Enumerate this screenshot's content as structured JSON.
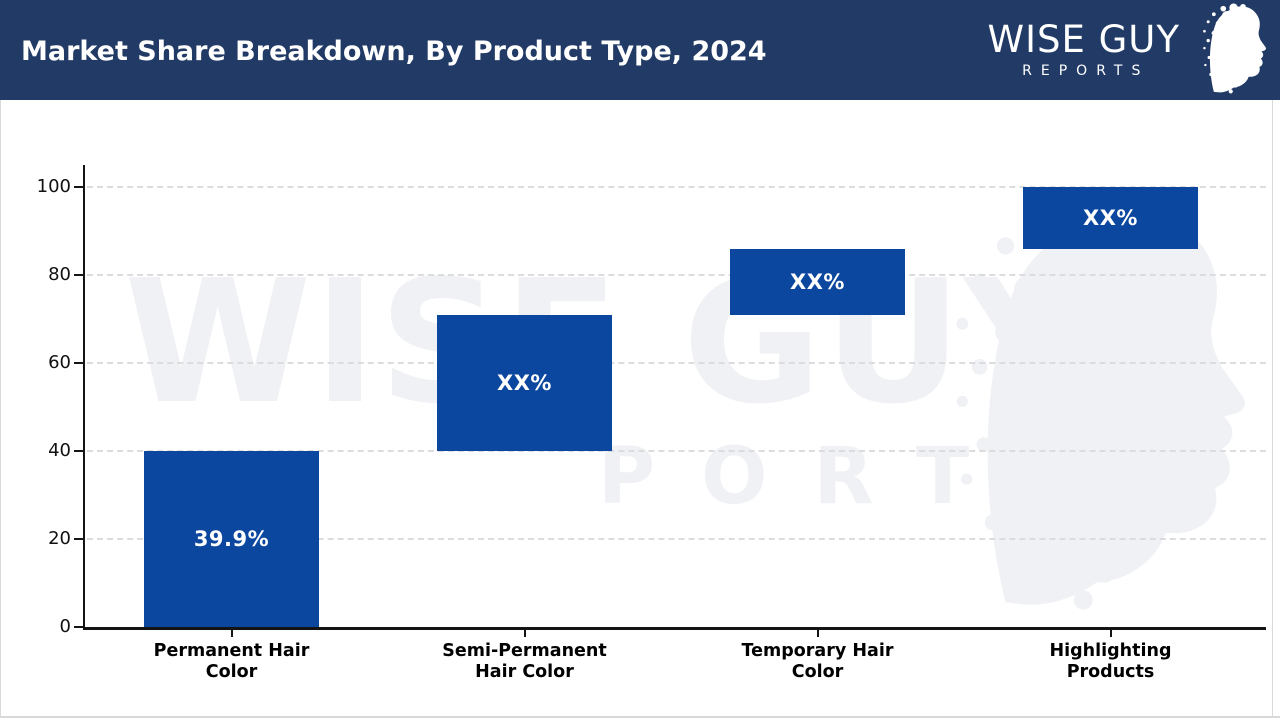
{
  "header": {
    "title": "Market Share Breakdown, By Product Type, 2024",
    "logo": {
      "wordmark": "WISE GUY",
      "subtext": "REPORTS"
    }
  },
  "watermark": {
    "wordmark": "WISE GUY",
    "subtext": "PORTS"
  },
  "chart_data": {
    "type": "bar",
    "variant": "stacked-percentage-waterfall",
    "title": "Market Share Breakdown, By Product Type, 2024",
    "categories": [
      "Permanent Hair Color",
      "Semi-Permanent Hair Color",
      "Temporary Hair Color",
      "Highlighting Products"
    ],
    "category_label_lines": [
      [
        "Permanent Hair",
        "Color"
      ],
      [
        "Semi-Permanent",
        "Hair Color"
      ],
      [
        "Temporary Hair",
        "Color"
      ],
      [
        "Highlighting",
        "Products"
      ]
    ],
    "segments": [
      {
        "category": "Permanent Hair Color",
        "label": "39.9%",
        "start": 0,
        "end": 39.9
      },
      {
        "category": "Semi-Permanent Hair Color",
        "label": "XX%",
        "start": 39.9,
        "end": 70.8
      },
      {
        "category": "Temporary Hair Color",
        "label": "XX%",
        "start": 70.8,
        "end": 85.9
      },
      {
        "category": "Highlighting Products",
        "label": "XX%",
        "start": 85.9,
        "end": 100
      }
    ],
    "yticks": [
      0,
      20,
      40,
      60,
      80,
      100
    ],
    "ylim": [
      0,
      105
    ],
    "xlabel": "",
    "ylabel": "",
    "legend": "none",
    "grid": "horizontal-dashed",
    "bar_color": "#0b479e",
    "value_label_color": "#ffffff"
  },
  "colors": {
    "header_bg": "#213a66",
    "bar": "#0b479e",
    "gridline": "#dcdcde",
    "axis": "#141414",
    "watermark": "#f0f1f4"
  }
}
